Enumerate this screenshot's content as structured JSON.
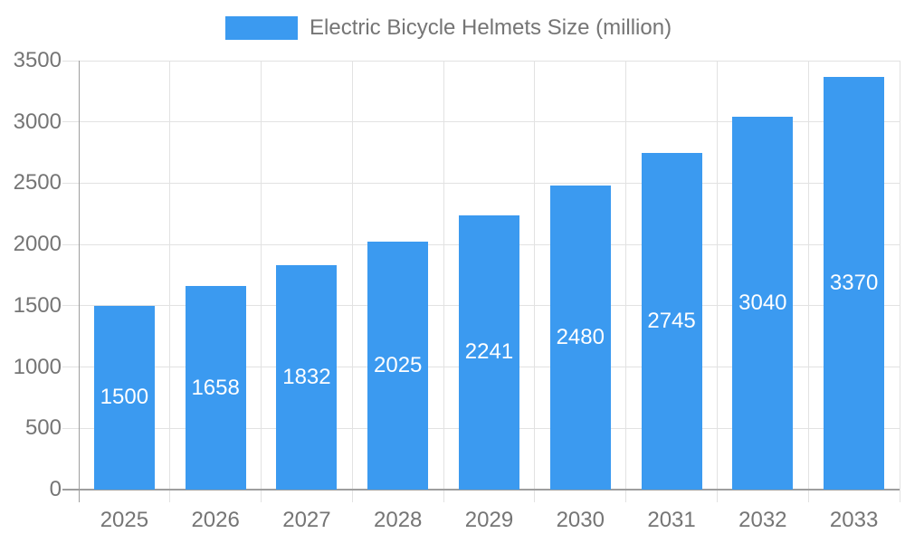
{
  "chart_data": {
    "type": "bar",
    "title": "Electric Bicycle Helmets Size (million)",
    "categories": [
      "2025",
      "2026",
      "2027",
      "2028",
      "2029",
      "2030",
      "2031",
      "2032",
      "2033"
    ],
    "values": [
      1500,
      1658,
      1832,
      2025,
      2241,
      2480,
      2745,
      3040,
      3370
    ],
    "series": [
      {
        "name": "Electric Bicycle Helmets Size (million)",
        "values": [
          1500,
          1658,
          1832,
          2025,
          2241,
          2480,
          2745,
          3040,
          3370
        ]
      }
    ],
    "xlabel": "",
    "ylabel": "",
    "ylim": [
      0,
      3500
    ],
    "y_ticks": [
      0,
      500,
      1000,
      1500,
      2000,
      2500,
      3000,
      3500
    ],
    "legend_position": "top",
    "grid": true,
    "value_labels": "inside-center",
    "colors": {
      "bar": "#3B9AF0",
      "value_label": "#FFFFFF",
      "axis_text": "#757575",
      "grid_line": "#E2E2E2",
      "axis_line": "#9E9E9E",
      "zero_tick_dotted": "#BDBDBD",
      "background": "#FFFFFF"
    }
  }
}
